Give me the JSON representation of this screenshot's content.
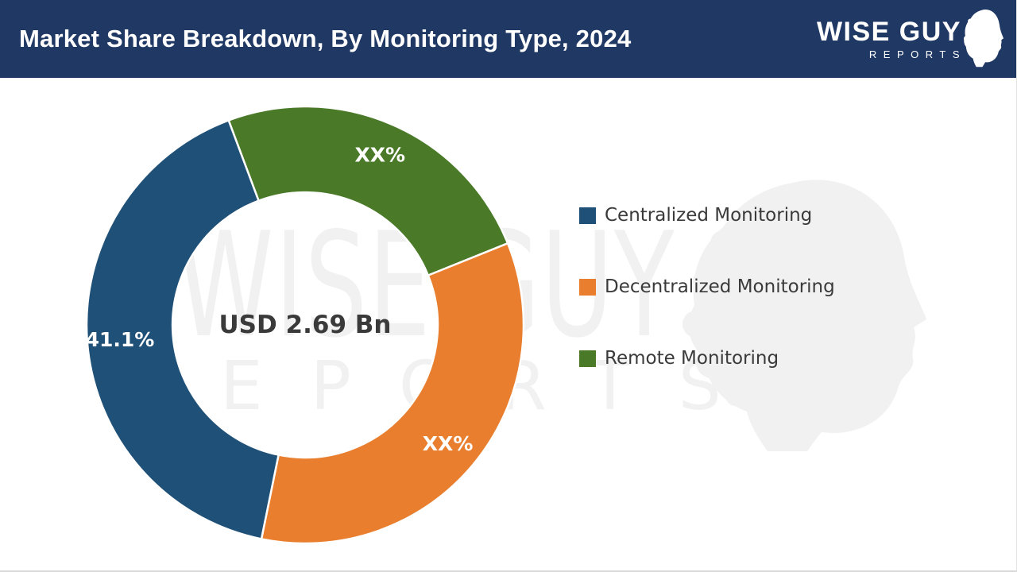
{
  "header": {
    "title": "Market Share Breakdown, By Monitoring Type, 2024",
    "logo": {
      "line1": "WISE GUY",
      "line2": "REPORTS"
    }
  },
  "watermark": {
    "line1": "WISE GUY",
    "line2": "REPORTS"
  },
  "chart_data": {
    "type": "donut",
    "title": "Market Share Breakdown, By Monitoring Type, 2024",
    "center_label": "USD 2.69 Bn",
    "units": "percent of market share",
    "start_angle_deg": -20.5,
    "inner_radius_ratio": 0.607,
    "label_radius_ratio": 0.85,
    "segments": [
      {
        "name": "Remote Monitoring",
        "display_label": "XX%",
        "value_pct": 24.6,
        "color": "#4a7a28"
      },
      {
        "name": "Decentralized Monitoring",
        "display_label": "XX%",
        "value_pct": 34.3,
        "color": "#e87e2e"
      },
      {
        "name": "Centralized Monitoring",
        "display_label": "41.1%",
        "value_pct": 41.1,
        "color": "#1f5077"
      }
    ],
    "legend": [
      {
        "label": "Centralized Monitoring",
        "color": "#1f5077"
      },
      {
        "label": "Decentralized Monitoring",
        "color": "#e87e2e"
      },
      {
        "label": "Remote Monitoring",
        "color": "#4a7a28"
      }
    ],
    "legend_position": "right"
  },
  "colors": {
    "header_bg": "#1f3864",
    "page_bg": "#ffffff",
    "center_text": "#3a3a3a",
    "legend_text": "#3a3a3a",
    "slice_label_text": "#ffffff",
    "watermark": "#f1f1f2",
    "bottom_edge_line": "#d9d9d9"
  }
}
